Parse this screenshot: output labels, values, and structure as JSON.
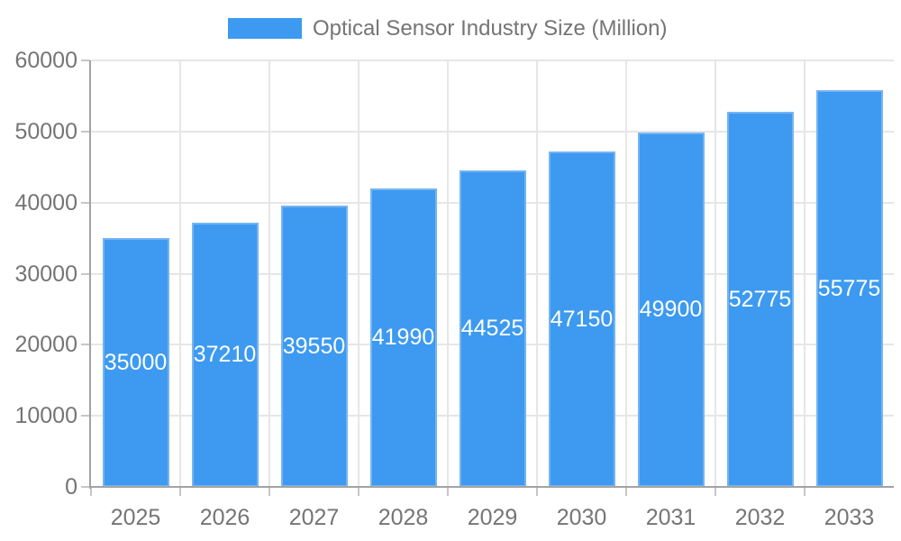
{
  "legend": {
    "label": "Optical Sensor Industry Size (Million)"
  },
  "colors": {
    "bar": "#3D9AF0",
    "bar_stroke": "#76B4F2",
    "axis_text": "#757575",
    "annotation_text": "#FFFFFF",
    "gridline": "#E6E6E6",
    "axis_line": "#A3A3A3",
    "tick": "#C6C6C6",
    "background": "#FFFFFF"
  },
  "chart_data": {
    "type": "bar",
    "title": "Optical Sensor Industry Size (Million)",
    "series_name": "Optical Sensor Industry Size (Million)",
    "categories": [
      "2025",
      "2026",
      "2027",
      "2028",
      "2029",
      "2030",
      "2031",
      "2032",
      "2033"
    ],
    "values": [
      35000,
      37210,
      39550,
      41990,
      44525,
      47150,
      49900,
      52775,
      55775
    ],
    "xlabel": "",
    "ylabel": "",
    "ylim": [
      0,
      60000
    ],
    "yticks": [
      0,
      10000,
      20000,
      30000,
      40000,
      50000,
      60000
    ],
    "grid": true,
    "legend_position": "top",
    "annotation_position": "inside-center"
  }
}
